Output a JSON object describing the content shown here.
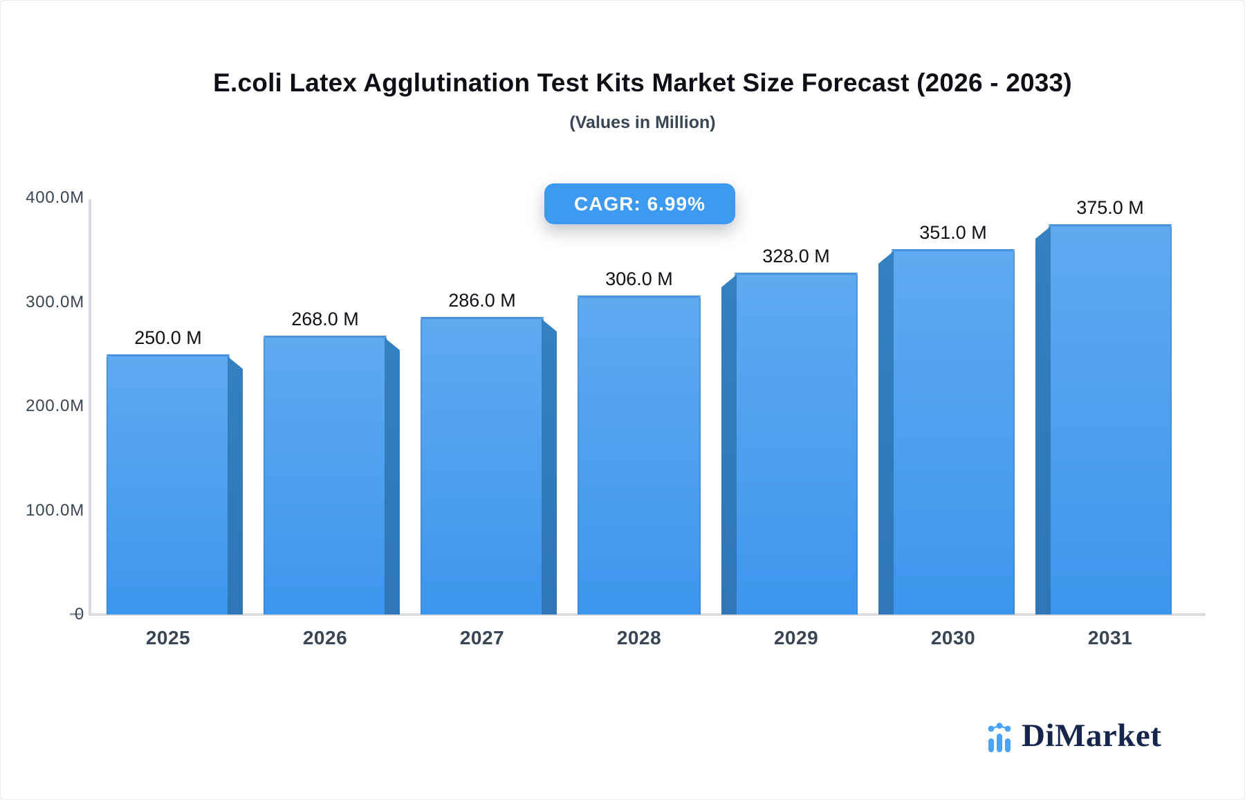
{
  "title": "E.coli Latex Agglutination Test Kits Market Size Forecast (2026 - 2033)",
  "subtitle": "(Values in Million)",
  "cagr": {
    "label": "CAGR: 6.99%"
  },
  "brand": {
    "name": "DiMarket",
    "icon": "mini-bar-chart-with-dots"
  },
  "colors": {
    "bar_top": "#5FA9F0",
    "bar_bottom": "#3D96ED",
    "bar_side": "#2E76B6",
    "badge_bg": "#3D9AF0",
    "badge_text": "#FFFFFF",
    "axis": "#D8DBDF",
    "slate": "#3A4554",
    "title_text": "#0C1016",
    "label_dark": "#0D1117",
    "brand_navy": "#16254C",
    "icon_blue": "#4BA3F5"
  },
  "chart_data": {
    "type": "bar",
    "categories": [
      "2025",
      "2026",
      "2027",
      "2028",
      "2029",
      "2030",
      "2031"
    ],
    "values": [
      250.0,
      268.0,
      286.0,
      306.0,
      328.0,
      351.0,
      375.0
    ],
    "value_labels": [
      "250.0 M",
      "268.0 M",
      "286.0 M",
      "306.0 M",
      "328.0 M",
      "351.0 M",
      "375.0 M"
    ],
    "title": "E.coli Latex Agglutination Test Kits Market Size Forecast (2026 - 2033)",
    "xlabel": "",
    "ylabel": "",
    "unit": "Million",
    "ylim": [
      0,
      400
    ],
    "yticks": [
      {
        "label": "400.0M",
        "value": 400
      },
      {
        "label": "300.0M",
        "value": 300
      },
      {
        "label": "200.0M",
        "value": 200
      },
      {
        "label": "100.0M",
        "value": 100
      },
      {
        "label": "0",
        "value": 0
      }
    ],
    "grid": false,
    "legend": null,
    "style": "3d-extruded-bars, perspective toward center"
  }
}
